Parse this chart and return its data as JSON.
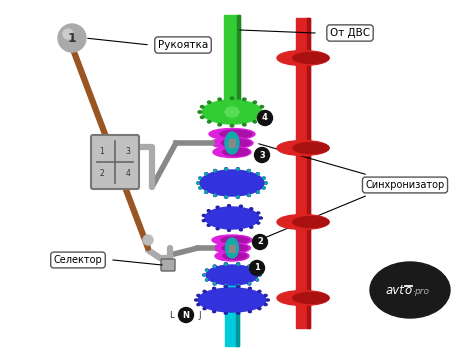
{
  "bg_color": "#f0f0f0",
  "border_color": "#bbbbbb",
  "green_color": "#33cc33",
  "green_dark": "#228822",
  "red_color": "#dd2222",
  "red_dark": "#aa1111",
  "cyan_color": "#00ccdd",
  "blue_color": "#3333dd",
  "blue_dark": "#2222aa",
  "magenta_color": "#dd22dd",
  "magenta_dark": "#aa11aa",
  "teal_color": "#11aaaa",
  "gray_color": "#999999",
  "gray_dark": "#666666",
  "gray_light": "#cccccc",
  "brown_color": "#995522",
  "black": "#111111",
  "white": "#ffffff",
  "label_rukoyatka": "Рукоятка",
  "label_ot_dvs": "От ДВС",
  "label_sinkhronizator": "Синхронизатор",
  "label_selektor": "Селектор",
  "label_N": "N",
  "figw": 4.74,
  "figh": 3.61,
  "dpi": 100
}
